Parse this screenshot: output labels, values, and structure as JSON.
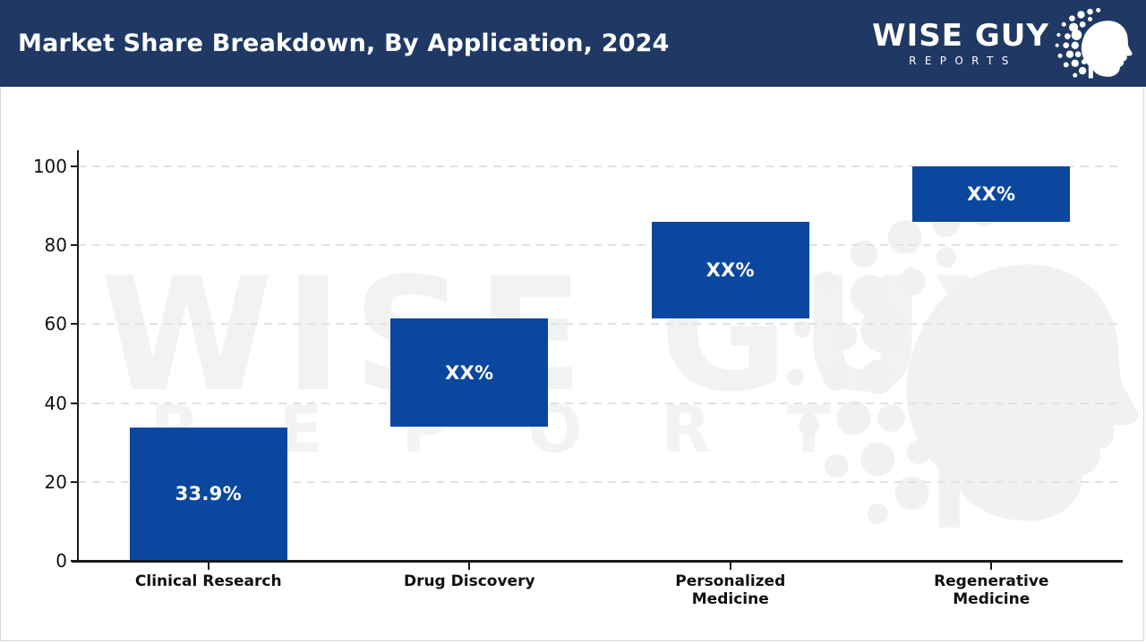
{
  "header": {
    "title": "Market Share Breakdown, By Application, 2024",
    "logo": {
      "line1": "WISE GUY",
      "line2": "REPORTS"
    }
  },
  "watermark": {
    "line1": "WISE GUY",
    "line2": "REPORTS"
  },
  "colors": {
    "header_bg": "#1F3864",
    "bar": "#0B479E",
    "grid": "#E2E2E2",
    "axis": "#1A1A1A",
    "bar_label": "#FFFFFF",
    "watermark": "#F2F2F2",
    "border": "#D6D6D6"
  },
  "chart_data": {
    "type": "bar",
    "variant": "waterfall",
    "title": "Market Share Breakdown, By Application, 2024",
    "categories": [
      "Clinical Research",
      "Drug Discovery",
      "Personalized Medicine",
      "Regenerative Medicine"
    ],
    "category_label_lines": [
      [
        "Clinical Research"
      ],
      [
        "Drug Discovery"
      ],
      [
        "Personalized",
        "Medicine"
      ],
      [
        "Regenerative",
        "Medicine"
      ]
    ],
    "segments": [
      {
        "category": "Clinical Research",
        "start": 0,
        "end": 33.9,
        "value_label": "33.9%"
      },
      {
        "category": "Drug Discovery",
        "start": 33.9,
        "end": 61.4,
        "value_label": "XX%"
      },
      {
        "category": "Personalized Medicine",
        "start": 61.4,
        "end": 85.9,
        "value_label": "XX%"
      },
      {
        "category": "Regenerative Medicine",
        "start": 85.9,
        "end": 100,
        "value_label": "XX%"
      }
    ],
    "yticks": [
      0,
      20,
      40,
      60,
      80,
      100
    ],
    "ytick_labels": [
      "0",
      "20",
      "40",
      "60",
      "80",
      "100"
    ],
    "ylim": [
      0,
      104
    ],
    "xlabel": "",
    "ylabel": "",
    "grid": "horizontal-dashed",
    "legend": "none"
  }
}
